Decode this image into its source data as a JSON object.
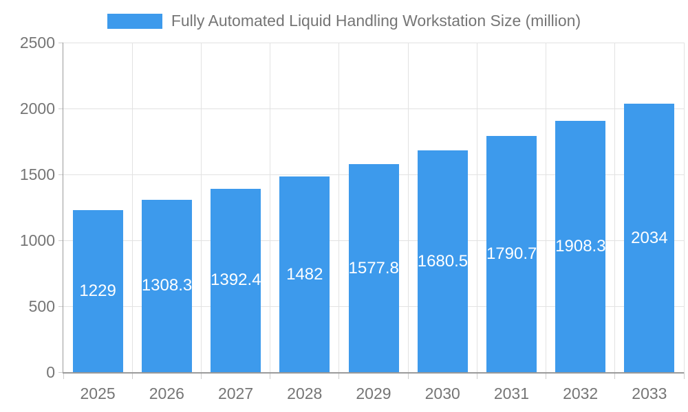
{
  "chart_data": {
    "type": "bar",
    "title": "Fully Automated Liquid Handling Workstation Size (million)",
    "categories": [
      "2025",
      "2026",
      "2027",
      "2028",
      "2029",
      "2030",
      "2031",
      "2032",
      "2033"
    ],
    "values": [
      1229,
      1308.3,
      1392.4,
      1482,
      1577.8,
      1680.5,
      1790.7,
      1908.3,
      2034
    ],
    "series": [
      {
        "name": "Fully Automated Liquid Handling Workstation Size (million)",
        "values": [
          1229,
          1308.3,
          1392.4,
          1482,
          1577.8,
          1680.5,
          1790.7,
          1908.3,
          2034
        ]
      }
    ],
    "xlabel": "",
    "ylabel": "",
    "ylim": [
      0,
      2500
    ],
    "yticks": [
      0,
      500,
      1000,
      1500,
      2000,
      2500
    ],
    "grid": true,
    "legend_position": "top-center",
    "bar_label_position": "inside-middle",
    "colors": {
      "bar": "#3D9AEC",
      "grid": "#e2e2e2",
      "axis": "#999999",
      "tick": "#cccccc",
      "text": "#757575",
      "bar_label": "#ffffff",
      "background": "#ffffff"
    }
  }
}
